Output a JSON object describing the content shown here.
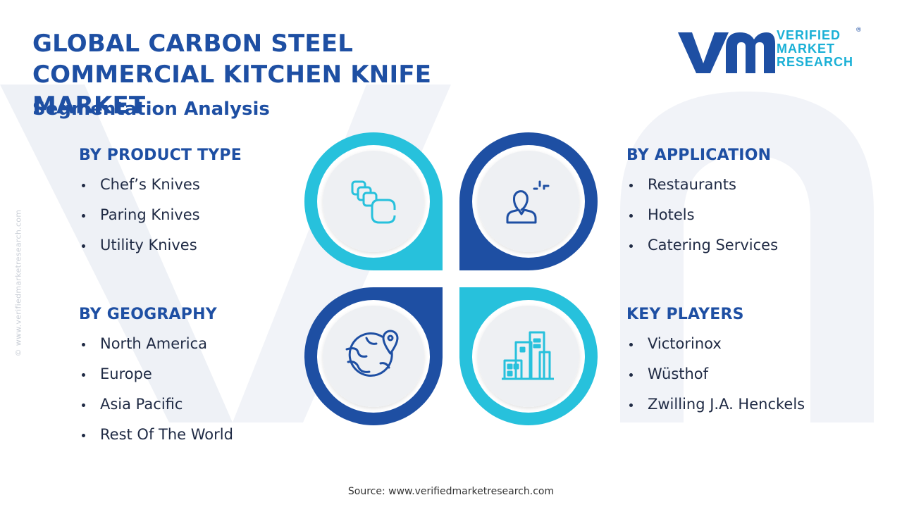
{
  "header": {
    "title": "GLOBAL CARBON STEEL COMMERCIAL KITCHEN KNIFE MARKET",
    "subtitle": "Segmentation Analysis"
  },
  "logo": {
    "line1": "VERIFIED",
    "line2": "MARKET",
    "line3": "RESEARCH",
    "registered": "®"
  },
  "side_watermark": "© www.verifiedmarketresearch.com",
  "segments": {
    "product_type": {
      "heading": "BY PRODUCT TYPE",
      "icon": "product-blocks-icon",
      "items": [
        "Chef’s Knives",
        "Paring Knives",
        "Utility Knives"
      ]
    },
    "application": {
      "heading": "BY APPLICATION",
      "icon": "person-presenting-icon",
      "items": [
        "Restaurants",
        "Hotels",
        "Catering Services"
      ]
    },
    "geography": {
      "heading": "BY GEOGRAPHY",
      "icon": "globe-location-icon",
      "items": [
        "North America",
        "Europe",
        "Asia Pacific",
        "Rest Of The World"
      ]
    },
    "key_players": {
      "heading": "KEY PLAYERS",
      "icon": "buildings-icon",
      "items": [
        "Victorinox",
        "Wüsthof",
        "Zwilling J.A. Henckels"
      ]
    }
  },
  "colors": {
    "dark_blue": "#1e4fa3",
    "light_blue": "#1ab0d6",
    "cyan": "#27c1dc"
  },
  "footer": {
    "source": "Source: www.verifiedmarketresearch.com"
  }
}
